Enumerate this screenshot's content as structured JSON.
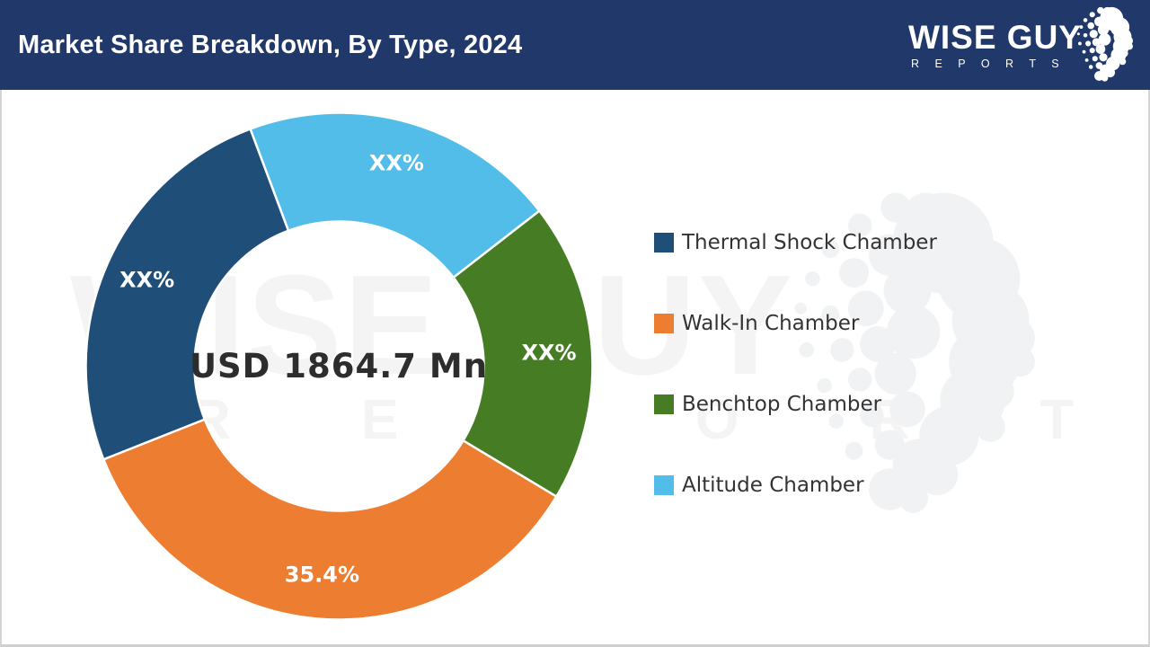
{
  "header": {
    "title": "Market Share Breakdown, By Type, 2024",
    "bg_color": "#21386B",
    "logo": {
      "name_line": "WISE GUY",
      "reports_line": "R E P O R T S"
    }
  },
  "watermark": {
    "line1": "WISE GUY",
    "line2": "R E P O R T S"
  },
  "chart_data": {
    "type": "donut",
    "title": "Market Share Breakdown, By Type, 2024",
    "center_label": "USD 1864.7 Mn",
    "start_angle_deg": -111.6,
    "legend_position": "right",
    "segments": [
      {
        "name": "Thermal Shock Chamber",
        "color": "#1F4E79",
        "share_pct": 25.3,
        "label": "XX%"
      },
      {
        "name": "Altitude Chamber",
        "color": "#53BDE9",
        "share_pct": 20.2,
        "label": "XX%"
      },
      {
        "name": "Benchtop Chamber",
        "color": "#467C24",
        "share_pct": 19.1,
        "label": "XX%"
      },
      {
        "name": "Walk-In Chamber",
        "color": "#ED7D31",
        "share_pct": 35.4,
        "label": "35.4%"
      }
    ],
    "legend": [
      {
        "label": "Thermal Shock Chamber",
        "color": "#1F4E79"
      },
      {
        "label": "Walk-In Chamber",
        "color": "#ED7D31"
      },
      {
        "label": "Benchtop Chamber",
        "color": "#467C24"
      },
      {
        "label": "Altitude Chamber",
        "color": "#53BDE9"
      }
    ]
  }
}
